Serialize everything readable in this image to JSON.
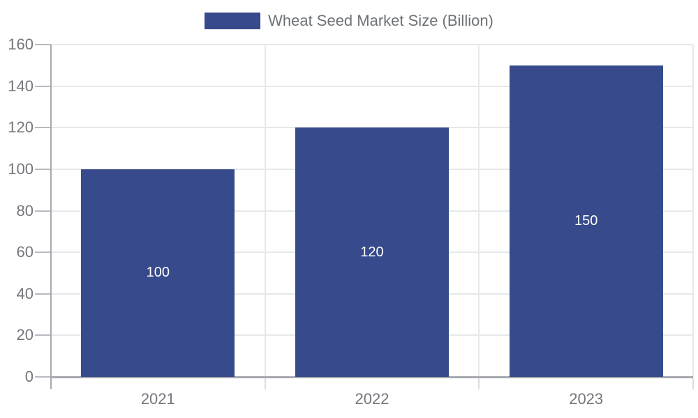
{
  "chart_data": {
    "type": "bar",
    "title": "Wheat Seed Market Size (Billion)",
    "categories": [
      "2021",
      "2022",
      "2023"
    ],
    "series": [
      {
        "name": "Wheat Seed Market Size (Billion)",
        "values": [
          100,
          120,
          150
        ]
      }
    ],
    "bar_value_labels": [
      "100",
      "120",
      "150"
    ],
    "y_tick_labels": [
      "0",
      "20",
      "40",
      "60",
      "80",
      "100",
      "120",
      "140",
      "160"
    ],
    "xlabel": "",
    "ylabel": "",
    "ylim": [
      0,
      160
    ],
    "ytick_step": 20,
    "grid": true,
    "legend_position": "top-center"
  },
  "colors": {
    "bar": "#364A8C",
    "bar_label": "#FFFFFF",
    "axis_label": "#73767B",
    "legend_label": "#6E7277",
    "axis_line": "#A6A9AE",
    "y_tick": "#B7BAC0",
    "x_tick": "#DBDDE1",
    "grid": "#E6E8EB",
    "background": "#FFFFFF"
  }
}
